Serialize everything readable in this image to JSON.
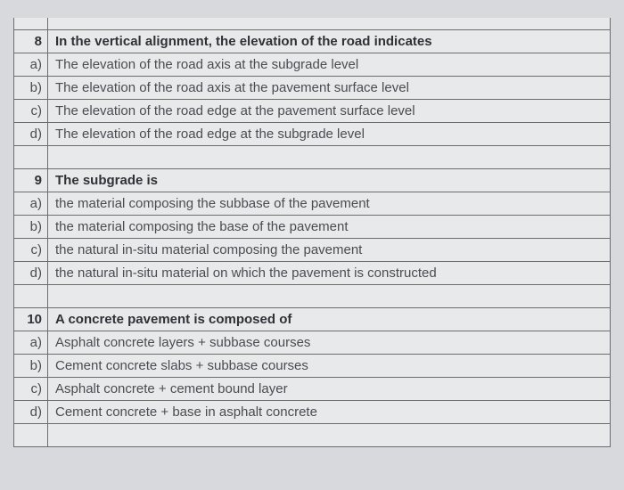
{
  "questions": [
    {
      "number": "8",
      "prompt": "In the vertical alignment, the elevation of the road indicates",
      "options": [
        {
          "label": "a)",
          "text": "The elevation of the road axis at the subgrade level"
        },
        {
          "label": "b)",
          "text": "The elevation of the road axis at the pavement surface level"
        },
        {
          "label": "c)",
          "text": "The elevation of the road edge at the pavement surface level"
        },
        {
          "label": "d)",
          "text": "The elevation of the road edge at the subgrade level"
        }
      ]
    },
    {
      "number": "9",
      "prompt": "The subgrade is",
      "options": [
        {
          "label": "a)",
          "text": "the material composing the subbase of the pavement"
        },
        {
          "label": "b)",
          "text": "the material composing the base of the pavement"
        },
        {
          "label": "c)",
          "text": "the natural in-situ material composing the pavement"
        },
        {
          "label": "d)",
          "text": "the natural in-situ material on which the pavement is constructed"
        }
      ]
    },
    {
      "number": "10",
      "prompt": "A concrete pavement is composed of",
      "options": [
        {
          "label": "a)",
          "text": "Asphalt concrete layers + subbase courses"
        },
        {
          "label": "b)",
          "text": "Cement concrete slabs + subbase courses"
        },
        {
          "label": "c)",
          "text": "Asphalt concrete + cement bound layer"
        },
        {
          "label": "d)",
          "text": "Cement concrete + base in asphalt concrete"
        }
      ]
    }
  ],
  "styling": {
    "background_color": "#d8d9dc",
    "table_background": "#e8e9eb",
    "border_color": "#6b6d72",
    "text_color": "#4a4c52",
    "bold_text_color": "#2f3136",
    "font_size": 15,
    "label_column_width": 38
  }
}
